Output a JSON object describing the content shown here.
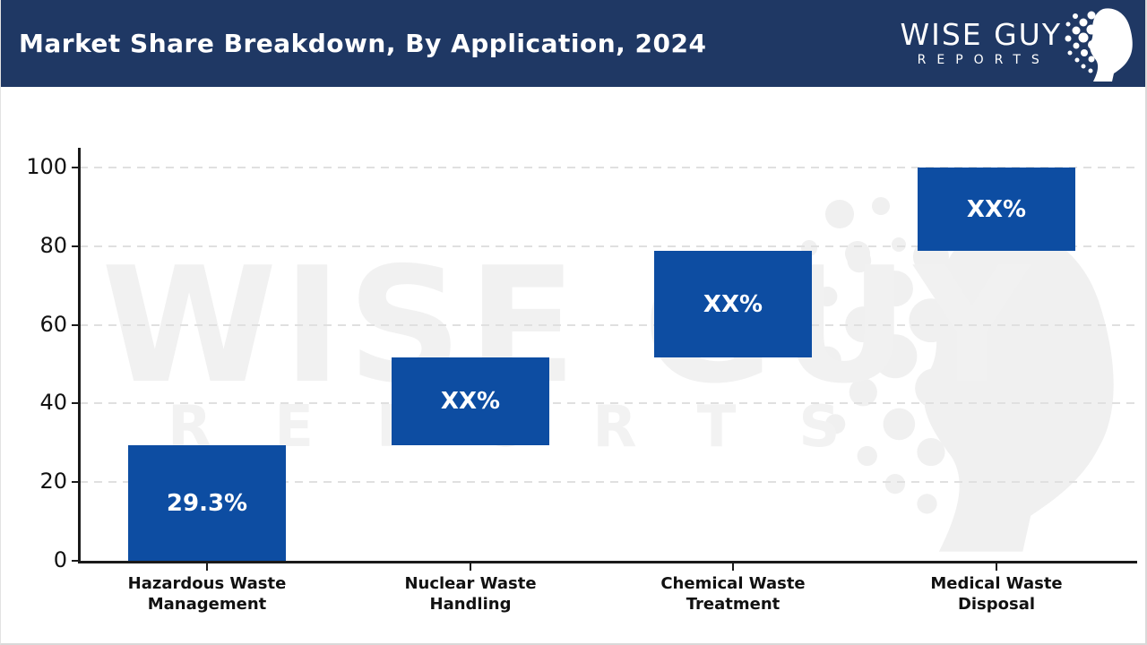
{
  "header": {
    "title": "Market Share Breakdown, By Application, 2024",
    "logo": {
      "line1": "WISE GUY",
      "line2": "REPORTS"
    }
  },
  "watermark": {
    "line1": "WISE GUY",
    "line2": "REPORTS"
  },
  "chart_data": {
    "type": "bar",
    "subtype": "waterfall",
    "title": "Market Share Breakdown, By Application, 2024",
    "categories": [
      "Hazardous Waste\nManagement",
      "Nuclear Waste\nHandling",
      "Chemical Waste\nTreatment",
      "Medical Waste\nDisposal"
    ],
    "segments": [
      {
        "category": "Hazardous Waste Management",
        "start": 0,
        "end": 29.3,
        "label": "29.3%"
      },
      {
        "category": "Nuclear Waste Handling",
        "start": 29.3,
        "end": 51.7,
        "label": "XX%"
      },
      {
        "category": "Chemical Waste Treatment",
        "start": 51.7,
        "end": 78.8,
        "label": "XX%"
      },
      {
        "category": "Medical Waste Disposal",
        "start": 78.8,
        "end": 100,
        "label": "XX%"
      }
    ],
    "yticks": [
      0,
      20,
      40,
      60,
      80,
      100
    ],
    "ylim": [
      0,
      105
    ],
    "xlabel": "",
    "ylabel": "",
    "grid": "horizontal-dashed",
    "legend": "none"
  },
  "colors": {
    "header_bg": "#1f3864",
    "bar": "#0d4da2",
    "bar_label": "#ffffff",
    "axis": "#1a1a1a",
    "grid": "#e0e0e0",
    "watermark": "#f1f1f1"
  }
}
